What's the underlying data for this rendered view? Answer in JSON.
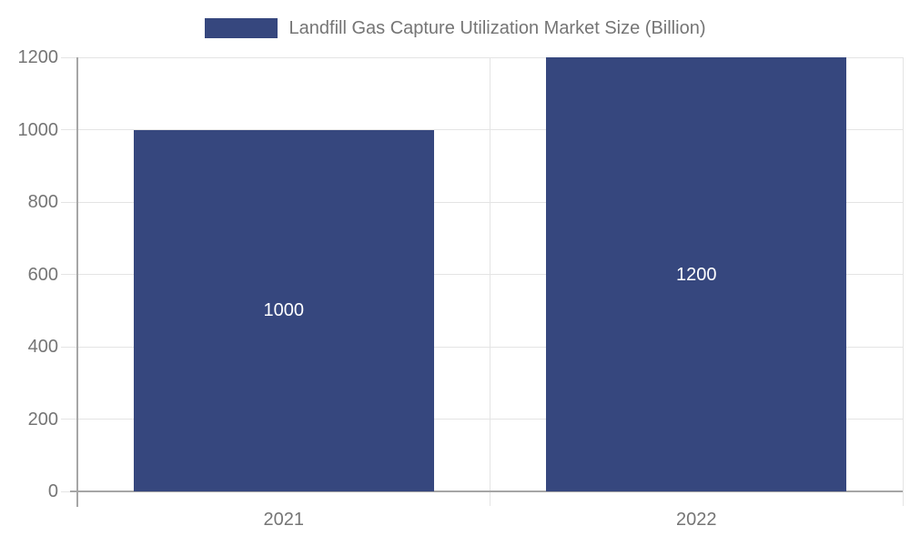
{
  "legend": {
    "label": "Landfill Gas Capture Utilization Market Size (Billion)"
  },
  "chart_data": {
    "type": "bar",
    "title": "",
    "categories": [
      "2021",
      "2022"
    ],
    "series": [
      {
        "name": "Landfill Gas Capture Utilization Market Size (Billion)",
        "values": [
          1000,
          1200
        ]
      }
    ],
    "bar_value_labels": [
      "1000",
      "1200"
    ],
    "xlabel": "",
    "ylabel": "",
    "ylim": [
      0,
      1200
    ],
    "yticks": [
      0,
      200,
      400,
      600,
      800,
      1000,
      1200
    ],
    "grid": true,
    "legend_position": "top"
  },
  "colors": {
    "bar": "#36477e",
    "axis_text": "#757575",
    "grid_line": "#e4e4e4",
    "axis_line": "#a6a6a6",
    "value_label": "#ffffff",
    "background": "#ffffff"
  }
}
